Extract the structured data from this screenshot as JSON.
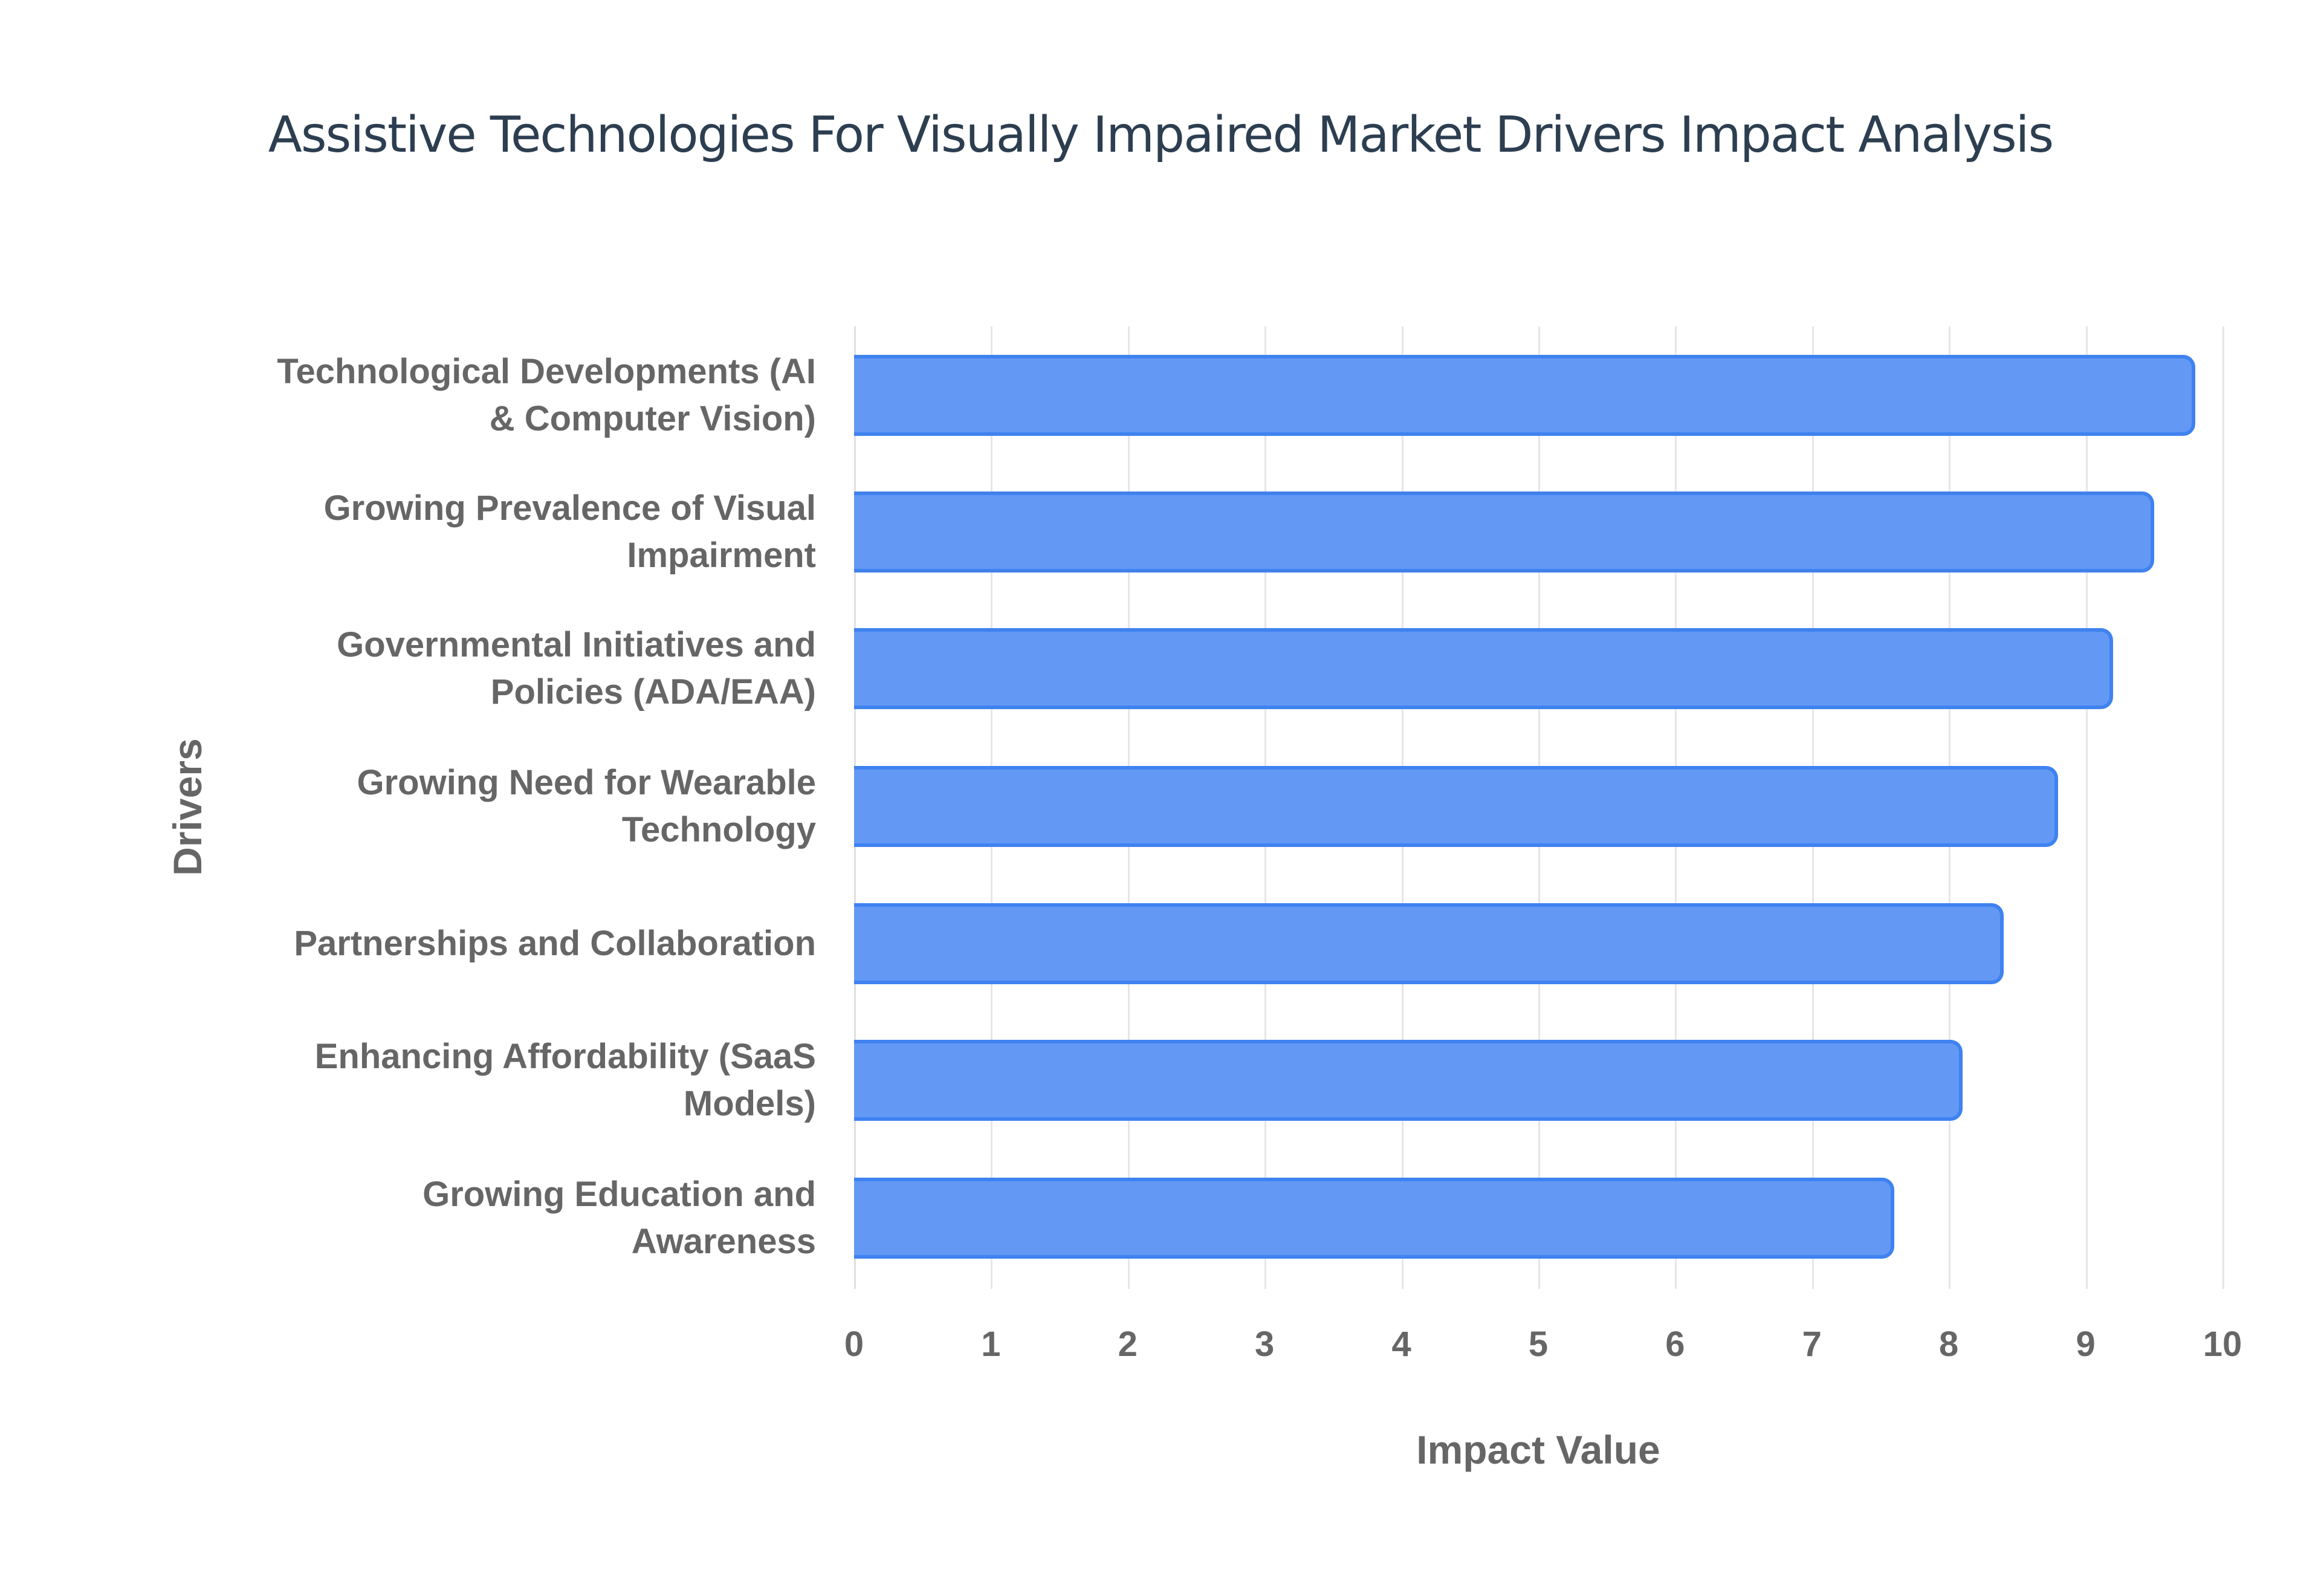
{
  "chart_data": {
    "type": "bar",
    "orientation": "horizontal",
    "title": "Assistive Technologies For Visually Impaired Market Drivers Impact Analysis",
    "xlabel": "Impact Value",
    "ylabel": "Drivers",
    "xlim": [
      0,
      10
    ],
    "xticks": [
      "0",
      "1",
      "2",
      "3",
      "4",
      "5",
      "6",
      "7",
      "8",
      "9",
      "10"
    ],
    "grid": true,
    "legend": false,
    "bar_color": "#6399f5",
    "bar_border_color": "#3f82f0",
    "categories": [
      [
        "Technological Developments (AI",
        "& Computer Vision)"
      ],
      [
        "Growing Prevalence of Visual",
        "Impairment"
      ],
      [
        "Governmental Initiatives and",
        "Policies (ADA/EAA)"
      ],
      [
        "Growing Need for Wearable",
        "Technology"
      ],
      [
        "Partnerships and Collaboration"
      ],
      [
        "Enhancing Affordability (SaaS",
        "Models)"
      ],
      [
        "Growing Education and",
        "Awareness"
      ]
    ],
    "values": [
      9.8,
      9.5,
      9.2,
      8.8,
      8.4,
      8.1,
      7.6
    ]
  }
}
